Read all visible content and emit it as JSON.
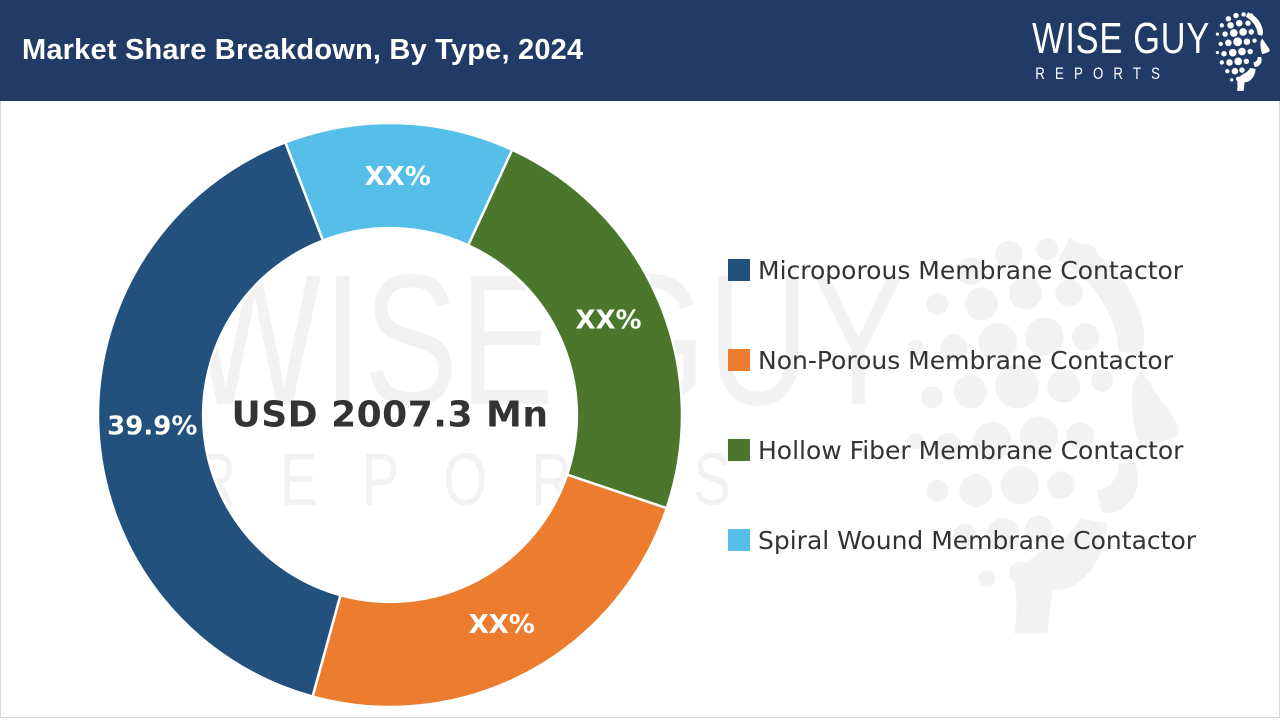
{
  "header": {
    "title": "Market Share Breakdown, By Type, 2024",
    "bg_color": "#213a66",
    "logo": {
      "line1": "WISE GUY",
      "line2": "REPORTS"
    }
  },
  "chart_data": {
    "type": "pie",
    "subtype": "donut",
    "title": "Market Share Breakdown, By Type, 2024",
    "center_label": "USD 2007.3 Mn",
    "start_angle_deg": 111,
    "direction": "counterclockwise",
    "inner_radius_ratio": 0.64,
    "legend_position": "right",
    "slices": [
      {
        "name": "Microporous Membrane Contactor",
        "label": "39.9%",
        "percent": 39.9,
        "color": "#21517c"
      },
      {
        "name": "Non-Porous Membrane Contactor",
        "label": "XX%",
        "percent": 24.1,
        "color": "#ec7d2e"
      },
      {
        "name": "Hollow Fiber Membrane Contactor",
        "label": "XX%",
        "percent": 23.3,
        "color": "#4a772b"
      },
      {
        "name": "Spiral Wound Membrane Contactor",
        "label": "XX%",
        "percent": 12.7,
        "color": "#55bfe9"
      }
    ]
  },
  "watermark": {
    "line1": "WISE GUY",
    "line2": "REPORTS"
  }
}
